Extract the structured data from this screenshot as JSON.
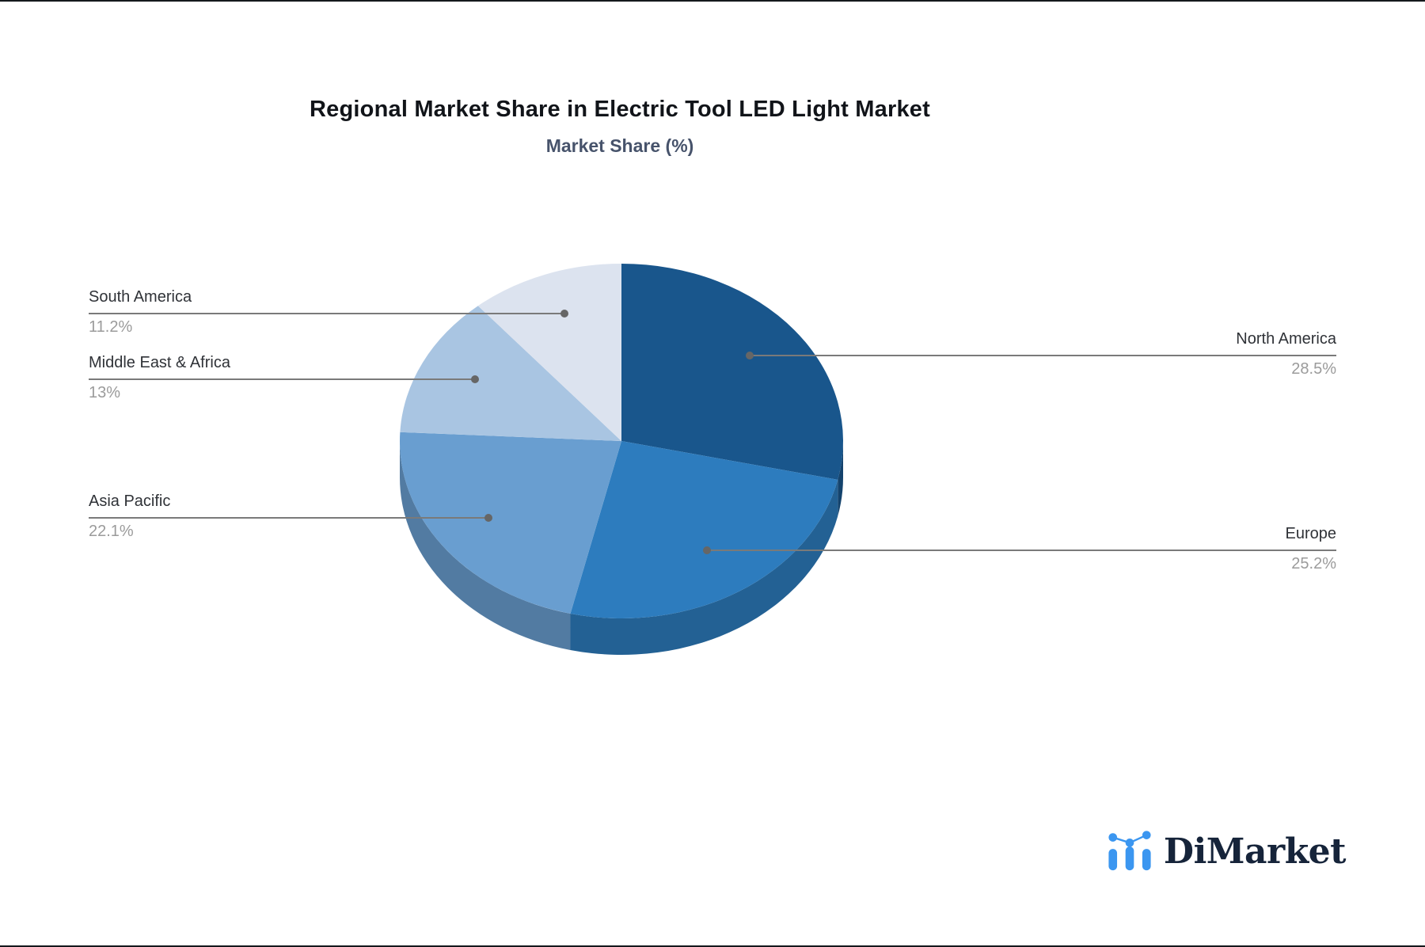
{
  "page": {
    "background": "#ffffff"
  },
  "chart_data": {
    "type": "pie",
    "title": "Regional Market Share in Electric Tool LED Light Market",
    "subtitle": "Market Share (%)",
    "labels": [
      "North America",
      "Europe",
      "Asia Pacific",
      "Middle East & Africa",
      "South America"
    ],
    "values": [
      28.5,
      25.2,
      22.1,
      13,
      11.2
    ],
    "display_values": [
      "28.5%",
      "25.2%",
      "22.1%",
      "13%",
      "11.2%"
    ],
    "colors": [
      "#19568c",
      "#2d7cbe",
      "#699ed0",
      "#a9c5e2",
      "#dce3ef"
    ],
    "start_angle_deg": 0,
    "direction": "clockwise",
    "style": "3d",
    "legend_position": "callout-lines",
    "accent_colors": {
      "leader_line": "#7a7a7a",
      "dot": "#666666",
      "label_text": "#2f3237",
      "value_text": "#9b9b9b"
    }
  },
  "branding": {
    "logo_text": "DiMarket",
    "logo_icon": "bar-line-chart-icon",
    "icon_color": "#3b96f0",
    "text_color": "#16243a"
  }
}
